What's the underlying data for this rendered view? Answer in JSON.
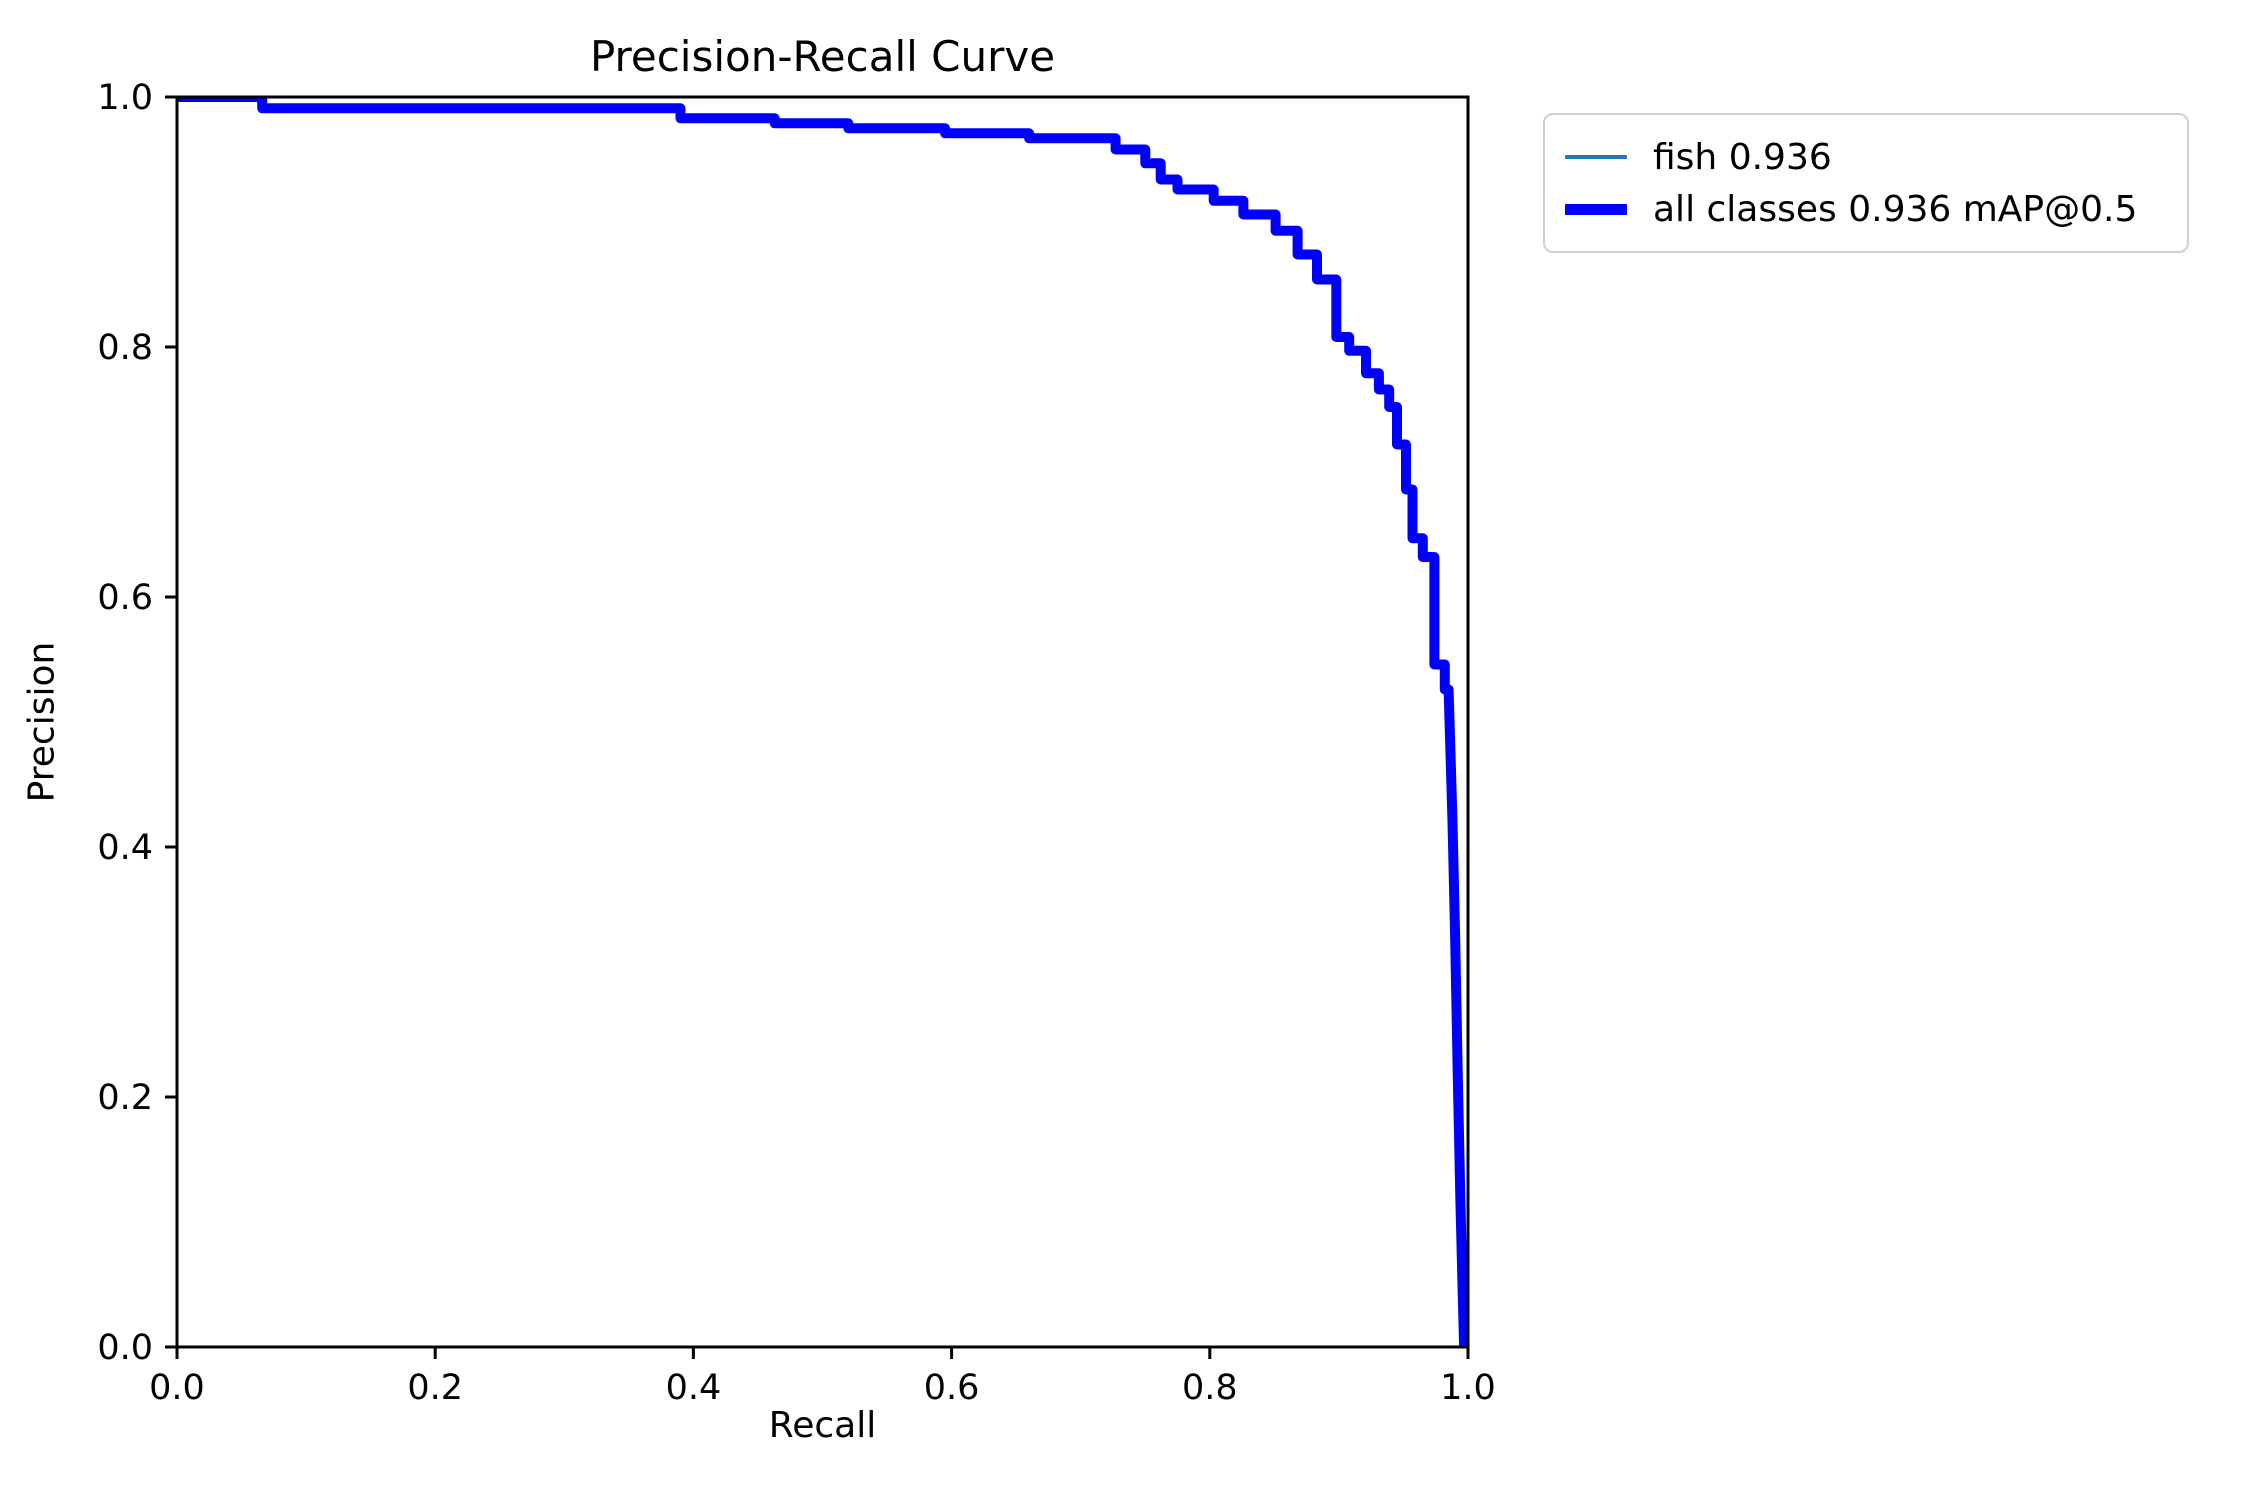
{
  "title": "Precision-Recall Curve",
  "axes": {
    "xlabel": "Recall",
    "ylabel": "Precision"
  },
  "legend": {
    "entries": [
      {
        "label": "fish 0.936",
        "color": "#1f77b4",
        "style": "thin"
      },
      {
        "label": "all classes 0.936 mAP@0.5",
        "color": "#0000ff",
        "style": "thick"
      }
    ]
  },
  "chart_data": {
    "type": "line",
    "title": "Precision-Recall Curve",
    "xlabel": "Recall",
    "ylabel": "Precision",
    "xlim": [
      0.0,
      1.0
    ],
    "ylim": [
      0.0,
      1.0
    ],
    "x_ticks": [
      "0.0",
      "0.2",
      "0.4",
      "0.6",
      "0.8",
      "1.0"
    ],
    "y_ticks": [
      "0.0",
      "0.2",
      "0.4",
      "0.6",
      "0.8",
      "1.0"
    ],
    "grid": false,
    "legend_position": "outside-upper-right",
    "frame": "full-box",
    "series": [
      {
        "name": "fish 0.936",
        "color": "#1f77b4",
        "linewidth": 3.5,
        "points": [
          [
            0.0,
            1.0
          ],
          [
            0.066,
            1.0
          ],
          [
            0.066,
            0.991
          ],
          [
            0.39,
            0.991
          ],
          [
            0.39,
            0.983
          ],
          [
            0.463,
            0.983
          ],
          [
            0.463,
            0.979
          ],
          [
            0.52,
            0.979
          ],
          [
            0.52,
            0.975
          ],
          [
            0.595,
            0.975
          ],
          [
            0.595,
            0.971
          ],
          [
            0.66,
            0.971
          ],
          [
            0.66,
            0.967
          ],
          [
            0.727,
            0.967
          ],
          [
            0.727,
            0.958
          ],
          [
            0.75,
            0.958
          ],
          [
            0.75,
            0.947
          ],
          [
            0.762,
            0.947
          ],
          [
            0.762,
            0.934
          ],
          [
            0.775,
            0.934
          ],
          [
            0.775,
            0.926
          ],
          [
            0.803,
            0.926
          ],
          [
            0.803,
            0.917
          ],
          [
            0.826,
            0.917
          ],
          [
            0.826,
            0.906
          ],
          [
            0.851,
            0.906
          ],
          [
            0.851,
            0.893
          ],
          [
            0.868,
            0.893
          ],
          [
            0.868,
            0.874
          ],
          [
            0.883,
            0.874
          ],
          [
            0.883,
            0.854
          ],
          [
            0.898,
            0.854
          ],
          [
            0.898,
            0.808
          ],
          [
            0.908,
            0.808
          ],
          [
            0.908,
            0.797
          ],
          [
            0.921,
            0.797
          ],
          [
            0.921,
            0.779
          ],
          [
            0.931,
            0.779
          ],
          [
            0.931,
            0.766
          ],
          [
            0.939,
            0.766
          ],
          [
            0.939,
            0.752
          ],
          [
            0.945,
            0.752
          ],
          [
            0.945,
            0.722
          ],
          [
            0.952,
            0.722
          ],
          [
            0.952,
            0.686
          ],
          [
            0.957,
            0.686
          ],
          [
            0.957,
            0.647
          ],
          [
            0.965,
            0.647
          ],
          [
            0.965,
            0.632
          ],
          [
            0.974,
            0.632
          ],
          [
            0.974,
            0.546
          ],
          [
            0.982,
            0.546
          ],
          [
            0.982,
            0.526
          ],
          [
            0.985,
            0.526
          ],
          [
            0.988,
            0.42
          ],
          [
            0.99,
            0.33
          ],
          [
            0.992,
            0.22
          ],
          [
            0.994,
            0.12
          ],
          [
            0.996,
            0.04
          ],
          [
            0.997,
            0.0
          ]
        ]
      },
      {
        "name": "all classes 0.936 mAP@0.5",
        "color": "#0000ff",
        "linewidth": 10,
        "points": [
          [
            0.0,
            1.0
          ],
          [
            0.066,
            1.0
          ],
          [
            0.066,
            0.991
          ],
          [
            0.39,
            0.991
          ],
          [
            0.39,
            0.983
          ],
          [
            0.463,
            0.983
          ],
          [
            0.463,
            0.979
          ],
          [
            0.52,
            0.979
          ],
          [
            0.52,
            0.975
          ],
          [
            0.595,
            0.975
          ],
          [
            0.595,
            0.971
          ],
          [
            0.66,
            0.971
          ],
          [
            0.66,
            0.967
          ],
          [
            0.727,
            0.967
          ],
          [
            0.727,
            0.958
          ],
          [
            0.75,
            0.958
          ],
          [
            0.75,
            0.947
          ],
          [
            0.762,
            0.947
          ],
          [
            0.762,
            0.934
          ],
          [
            0.775,
            0.934
          ],
          [
            0.775,
            0.926
          ],
          [
            0.803,
            0.926
          ],
          [
            0.803,
            0.917
          ],
          [
            0.826,
            0.917
          ],
          [
            0.826,
            0.906
          ],
          [
            0.851,
            0.906
          ],
          [
            0.851,
            0.893
          ],
          [
            0.868,
            0.893
          ],
          [
            0.868,
            0.874
          ],
          [
            0.883,
            0.874
          ],
          [
            0.883,
            0.854
          ],
          [
            0.898,
            0.854
          ],
          [
            0.898,
            0.808
          ],
          [
            0.908,
            0.808
          ],
          [
            0.908,
            0.797
          ],
          [
            0.921,
            0.797
          ],
          [
            0.921,
            0.779
          ],
          [
            0.931,
            0.779
          ],
          [
            0.931,
            0.766
          ],
          [
            0.939,
            0.766
          ],
          [
            0.939,
            0.752
          ],
          [
            0.945,
            0.752
          ],
          [
            0.945,
            0.722
          ],
          [
            0.952,
            0.722
          ],
          [
            0.952,
            0.686
          ],
          [
            0.957,
            0.686
          ],
          [
            0.957,
            0.647
          ],
          [
            0.965,
            0.647
          ],
          [
            0.965,
            0.632
          ],
          [
            0.974,
            0.632
          ],
          [
            0.974,
            0.546
          ],
          [
            0.982,
            0.546
          ],
          [
            0.982,
            0.526
          ],
          [
            0.985,
            0.526
          ],
          [
            0.988,
            0.42
          ],
          [
            0.99,
            0.33
          ],
          [
            0.992,
            0.22
          ],
          [
            0.994,
            0.12
          ],
          [
            0.996,
            0.04
          ],
          [
            0.997,
            0.0
          ]
        ]
      }
    ]
  }
}
